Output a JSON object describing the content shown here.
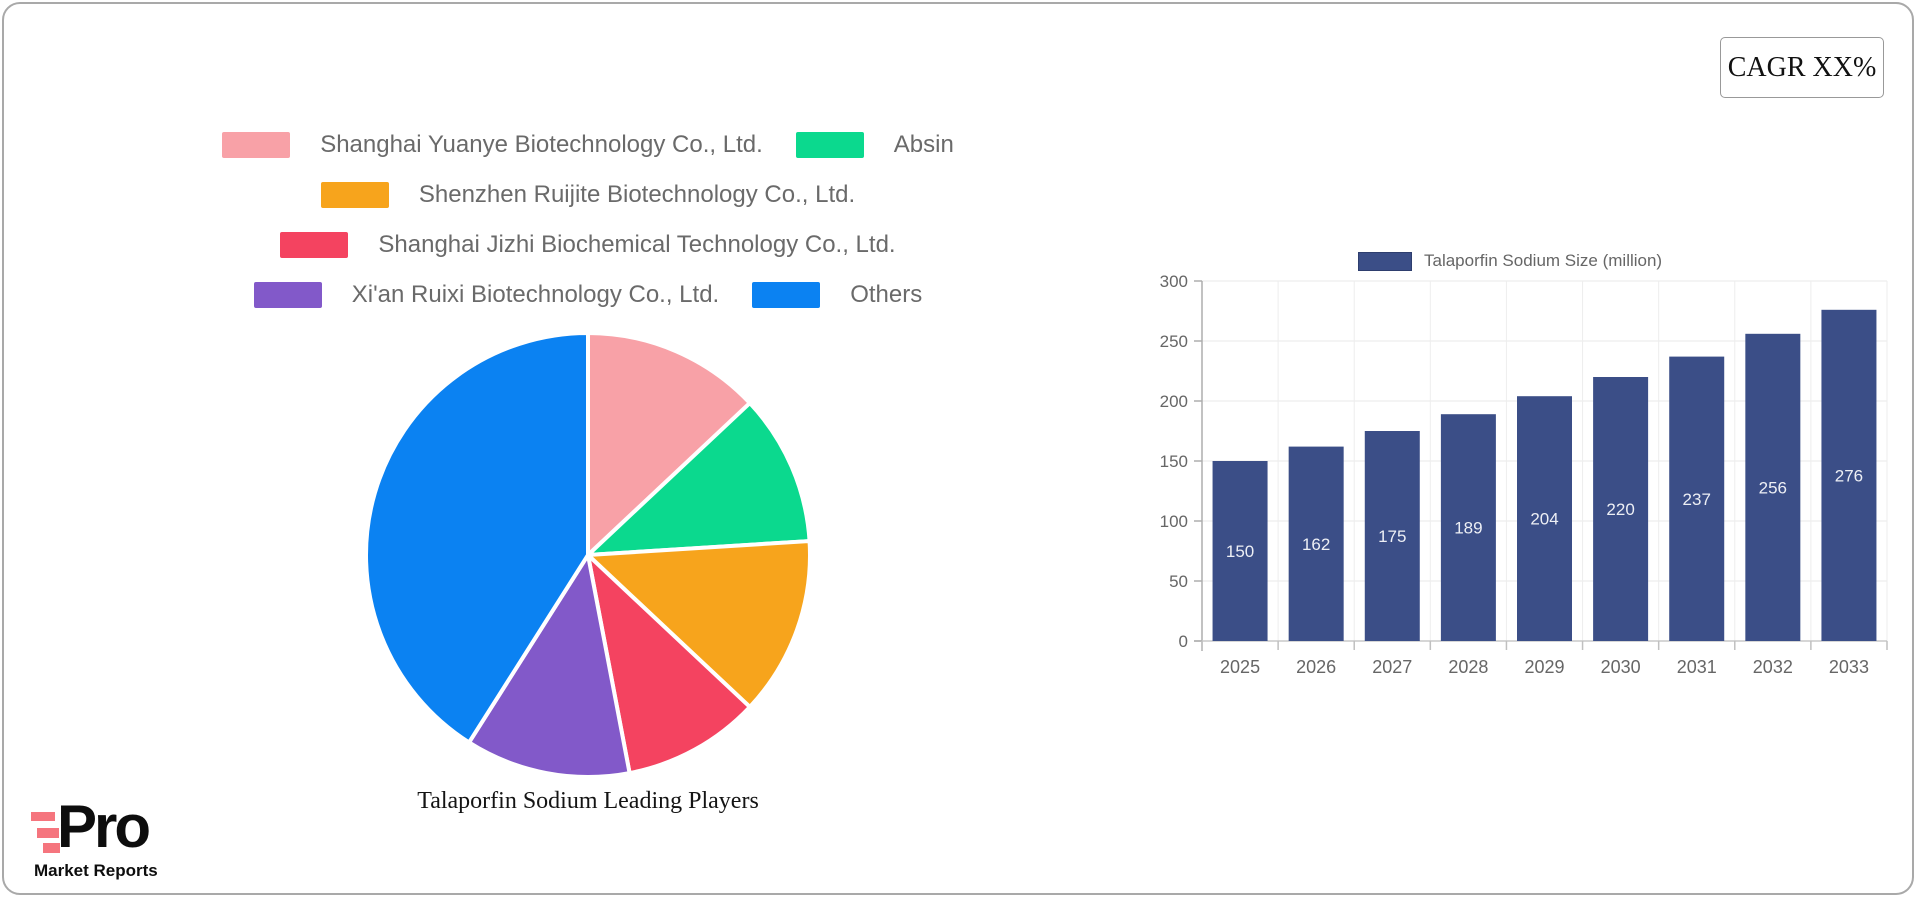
{
  "cagr_box": {
    "label": "CAGR XX%"
  },
  "logo": {
    "name": "Pro",
    "tagline": "Market Reports",
    "bar_color": "#f5757e"
  },
  "chart_data": [
    {
      "type": "pie",
      "title": "Talaporfin Sodium Leading Players",
      "labels": [
        "Shanghai Yuanye Biotechnology Co., Ltd.",
        "Absin",
        "Shenzhen Ruijite Biotechnology Co., Ltd.",
        "Shanghai Jizhi Biochemical Technology Co., Ltd.",
        "Xi'an Ruixi Biotechnology Co., Ltd.",
        "Others"
      ],
      "values": [
        13,
        11,
        13,
        10,
        12,
        41
      ],
      "unit": "percent",
      "colors": [
        "#f8a1a7",
        "#0bd98e",
        "#f7a41c",
        "#f44360",
        "#8259c9",
        "#0b82f2"
      ],
      "legend_position": "top",
      "start_angle": "top",
      "direction": "clockwise",
      "slice_gap_color": "#ffffff"
    },
    {
      "type": "bar",
      "legend_label": "Talaporfin Sodium Size (million)",
      "categories": [
        "2025",
        "2026",
        "2027",
        "2028",
        "2029",
        "2030",
        "2031",
        "2032",
        "2033"
      ],
      "values": [
        150,
        162,
        175,
        189,
        204,
        220,
        237,
        256,
        276
      ],
      "bar_color": "#3b4e87",
      "bar_border_color": "#2e3e6e",
      "ylim": [
        0,
        300
      ],
      "yticks": [
        0,
        50,
        100,
        150,
        200,
        250,
        300
      ],
      "grid": true,
      "grid_color": "#e8e8e8",
      "axis_color": "#adadad",
      "tick_label_color": "#666666",
      "value_label_color": "#edeff5",
      "value_label_position": "inside-center"
    }
  ]
}
